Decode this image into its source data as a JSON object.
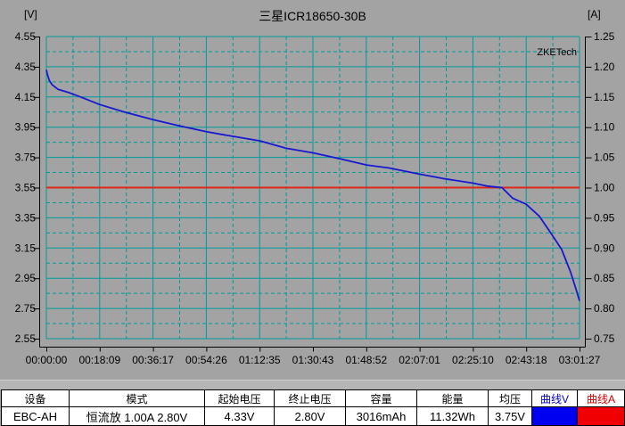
{
  "app": {
    "background": "#a3a3a3"
  },
  "chart_data": {
    "type": "line",
    "title": "三星ICR18650-30B",
    "watermark": "ZKETech",
    "grid": true,
    "x_ticks": [
      "00:00:00",
      "00:18:09",
      "00:36:17",
      "00:54:26",
      "01:12:35",
      "01:30:43",
      "01:48:52",
      "02:07:01",
      "02:25:10",
      "02:43:18",
      "03:01:27"
    ],
    "x_range_seconds": [
      0,
      10887
    ],
    "left_y": {
      "unit": "[V]",
      "min": 2.55,
      "max": 4.55,
      "ticks": [
        "4.55",
        "4.35",
        "4.15",
        "3.95",
        "3.75",
        "3.55",
        "3.35",
        "3.15",
        "2.95",
        "2.75",
        "2.55"
      ]
    },
    "right_y": {
      "unit": "[A]",
      "min": 0.75,
      "max": 1.25,
      "ticks": [
        "1.25",
        "1.20",
        "1.15",
        "1.10",
        "1.05",
        "1.00",
        "0.95",
        "0.90",
        "0.85",
        "0.80",
        "0.75"
      ]
    },
    "style": {
      "grid_color": "#009b9b",
      "watermark_color": "#00a6a6",
      "axis_color": "#000000"
    },
    "series": [
      {
        "name": "曲线V",
        "axis": "left",
        "color": "#1818d0",
        "points": [
          [
            0,
            4.33
          ],
          [
            20,
            4.3
          ],
          [
            60,
            4.26
          ],
          [
            120,
            4.23
          ],
          [
            240,
            4.2
          ],
          [
            450,
            4.18
          ],
          [
            700,
            4.15
          ],
          [
            1089,
            4.1
          ],
          [
            1600,
            4.05
          ],
          [
            2178,
            4.0
          ],
          [
            2700,
            3.96
          ],
          [
            3266,
            3.92
          ],
          [
            3800,
            3.89
          ],
          [
            4355,
            3.86
          ],
          [
            4900,
            3.81
          ],
          [
            5444,
            3.78
          ],
          [
            6000,
            3.74
          ],
          [
            6535,
            3.7
          ],
          [
            7000,
            3.68
          ],
          [
            7609,
            3.64
          ],
          [
            8100,
            3.61
          ],
          [
            8702,
            3.58
          ],
          [
            9000,
            3.56
          ],
          [
            9303,
            3.55
          ],
          [
            9522,
            3.48
          ],
          [
            9795,
            3.44
          ],
          [
            10068,
            3.36
          ],
          [
            10341,
            3.23
          ],
          [
            10523,
            3.14
          ],
          [
            10705,
            2.99
          ],
          [
            10833,
            2.86
          ],
          [
            10887,
            2.8
          ]
        ]
      },
      {
        "name": "曲线A",
        "axis": "right",
        "color": "#dd2818",
        "constant_value": 1.0
      }
    ]
  },
  "table": {
    "columns": [
      {
        "label": "设备",
        "text_color": "#000000"
      },
      {
        "label": "模式",
        "text_color": "#000000"
      },
      {
        "label": "起始电压",
        "text_color": "#000000"
      },
      {
        "label": "终止电压",
        "text_color": "#000000"
      },
      {
        "label": "容量",
        "text_color": "#000000"
      },
      {
        "label": "能量",
        "text_color": "#000000"
      },
      {
        "label": "均压",
        "text_color": "#000000"
      },
      {
        "label": "曲线V",
        "text_color": "#0000d0"
      },
      {
        "label": "曲线A",
        "text_color": "#d00000"
      }
    ],
    "row": {
      "device": "EBC-AH",
      "mode": "恒流放 1.00A 2.80V",
      "start_voltage": "4.33V",
      "end_voltage": "2.80V",
      "capacity": "3016mAh",
      "energy": "11.32Wh",
      "avg_voltage": "3.75V",
      "curve_v_swatch": "#0000f0",
      "curve_a_swatch": "#f00000"
    }
  }
}
